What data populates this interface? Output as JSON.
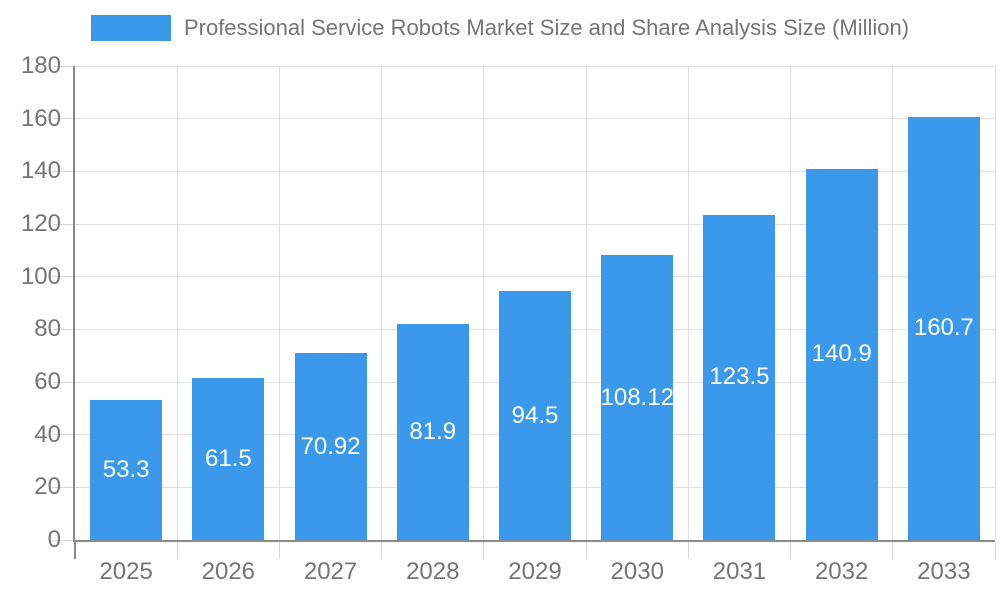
{
  "legend": {
    "swatch_icon": "series-color-swatch"
  },
  "chart_data": {
    "type": "bar",
    "title": "Professional Service Robots Market Size and Share Analysis Size (Million)",
    "categories": [
      "2025",
      "2026",
      "2027",
      "2028",
      "2029",
      "2030",
      "2031",
      "2032",
      "2033"
    ],
    "values": [
      53.3,
      61.5,
      70.92,
      81.9,
      94.5,
      108.12,
      123.5,
      140.9,
      160.7
    ],
    "value_labels": [
      "53.3",
      "61.5",
      "70.92",
      "81.9",
      "94.5",
      "108.12",
      "123.5",
      "140.9",
      "160.7"
    ],
    "series_name": "Professional Service Robots Market Size and Share Analysis Size (Million)",
    "xlabel": "",
    "ylabel": "",
    "ylim": [
      0,
      180
    ],
    "yticks": [
      0,
      20,
      40,
      60,
      80,
      100,
      120,
      140,
      160,
      180
    ],
    "grid": true,
    "legend_position": "top",
    "bar_color": "#3B99EC",
    "value_label_color": "#FFFFFF",
    "grid_color": "#E0E0E0",
    "tick_color": "#D6D6D6",
    "axis_color": "#8A8A8A",
    "tick_label_color": "#757575"
  }
}
